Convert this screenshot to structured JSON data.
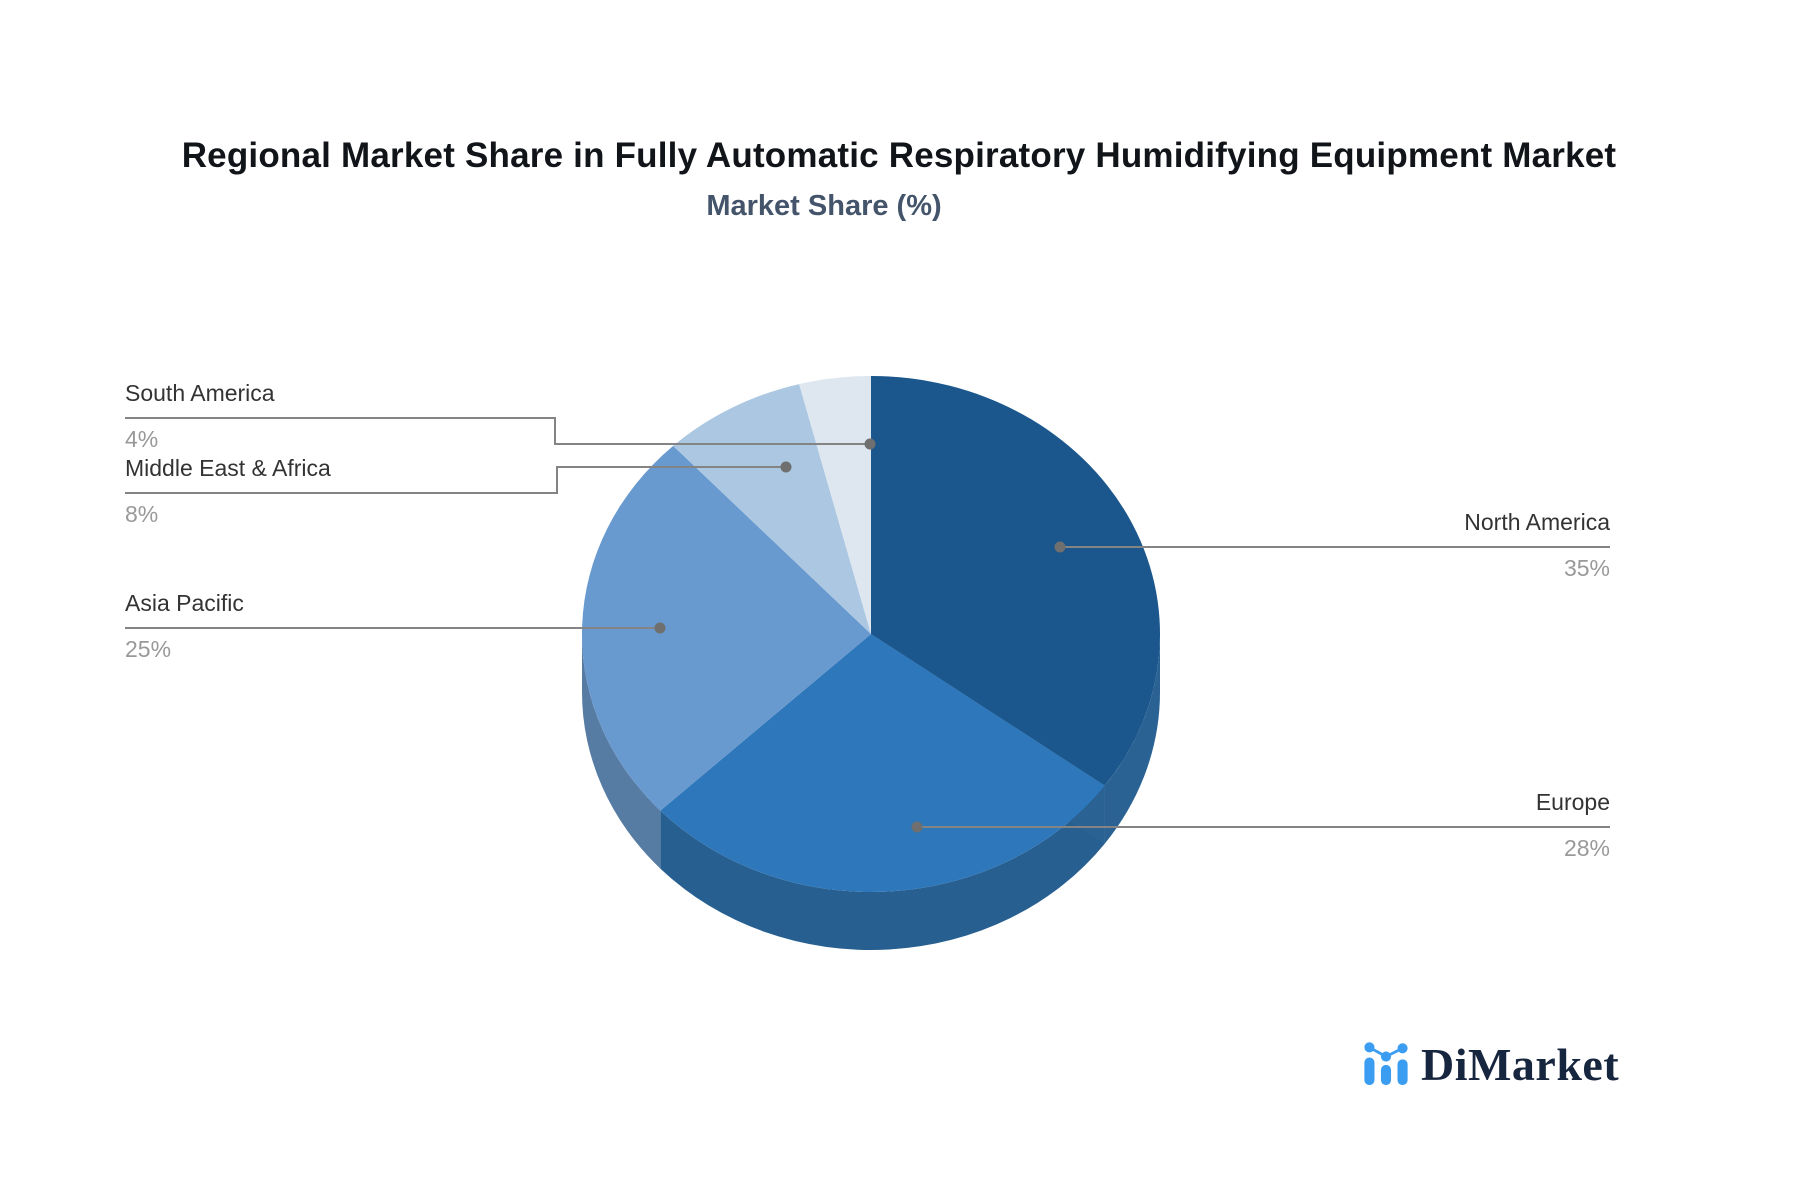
{
  "header": {
    "title": "Regional Market Share in Fully Automatic Respiratory Humidifying Equipment Market",
    "subtitle": "Market Share (%)"
  },
  "chart_data": {
    "type": "pie",
    "style": "3d",
    "unit": "%",
    "title": "Regional Market Share in Fully Automatic Respiratory Humidifying Equipment Market",
    "subtitle": "Market Share (%)",
    "legend": "none",
    "start_angle_deg": 0,
    "direction": "clockwise",
    "label_line_color": "#848484",
    "label_dot_color": "#6f6f6f",
    "name_text_color": "#333333",
    "pct_text_color": "#999999",
    "slices": [
      {
        "name": "North America",
        "value": 35,
        "pct_label": "35%",
        "color": "#1b578c",
        "side_color": "#2a6294",
        "label_side": "right"
      },
      {
        "name": "Europe",
        "value": 28,
        "pct_label": "28%",
        "color": "#2d77ba",
        "side_color": "#275f91",
        "label_side": "right"
      },
      {
        "name": "Asia Pacific",
        "value": 25,
        "pct_label": "25%",
        "color": "#6899cf",
        "side_color": "#567ca4",
        "label_side": "left"
      },
      {
        "name": "Middle East & Africa",
        "value": 8,
        "pct_label": "8%",
        "color": "#abc7e2",
        "side_color": "#8aa3ba",
        "label_side": "left"
      },
      {
        "name": "South America",
        "value": 4,
        "pct_label": "4%",
        "color": "#dee6f0",
        "side_color": "#b5bfc9",
        "label_side": "left"
      }
    ]
  },
  "branding": {
    "logo_text": "DiMarket",
    "logo_icon": "bar-chart-icon",
    "icon_color": "#3b9df2",
    "text_color": "#17263f"
  }
}
